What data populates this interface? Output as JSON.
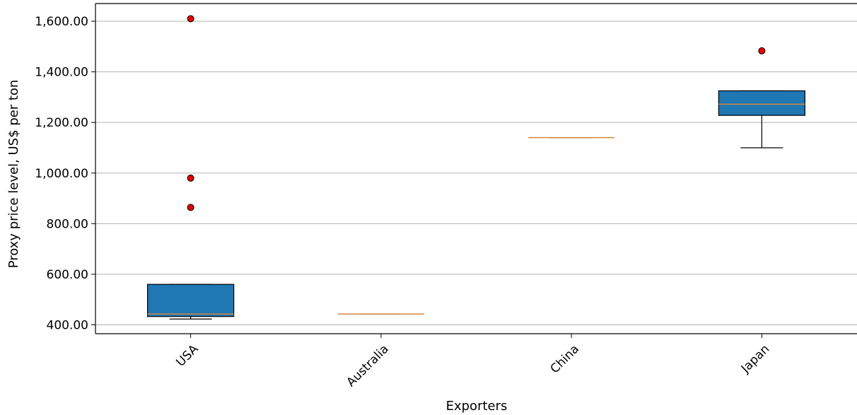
{
  "chart_data": {
    "type": "box",
    "xlabel": "Exporters",
    "ylabel": "Proxy price level, US$ per ton",
    "ylim": [
      365,
      1670
    ],
    "yticks": [
      400,
      600,
      800,
      1000,
      1200,
      1400,
      1600
    ],
    "ytick_labels": [
      "400.00",
      "600.00",
      "800.00",
      "1,000.00",
      "1,200.00",
      "1,400.00",
      "1,600.00"
    ],
    "grid": "horizontal",
    "colors": {
      "box_fill": "#1f77b4",
      "median": "#d2883a",
      "outlier": "#e60000",
      "grid": "#b0b0b0"
    },
    "categories": [
      "USA",
      "Australia",
      "China",
      "Japan"
    ],
    "boxes": [
      {
        "label": "USA",
        "whisker_low": 423,
        "q1": 433,
        "median": 443,
        "q3": 560,
        "whisker_high": 560,
        "outliers": [
          1610,
          980,
          864
        ]
      },
      {
        "label": "Australia",
        "whisker_low": 443,
        "q1": 443,
        "median": 443,
        "q3": 443,
        "whisker_high": 443,
        "outliers": []
      },
      {
        "label": "China",
        "whisker_low": 1140,
        "q1": 1140,
        "median": 1140,
        "q3": 1140,
        "whisker_high": 1140,
        "outliers": []
      },
      {
        "label": "Japan",
        "whisker_low": 1100,
        "q1": 1228,
        "median": 1272,
        "q3": 1325,
        "whisker_high": 1325,
        "outliers": [
          1483
        ]
      }
    ]
  }
}
